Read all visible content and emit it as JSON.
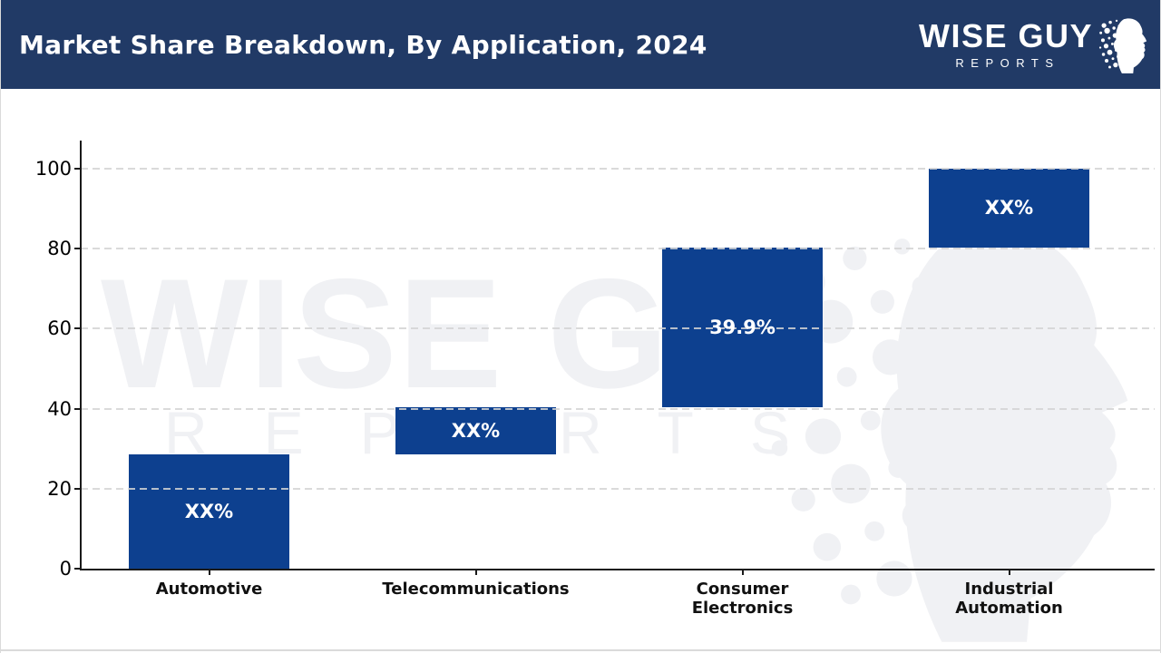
{
  "header": {
    "title": "Market Share Breakdown, By Application, 2024",
    "logo": {
      "line1": "WISE GUY",
      "line2": "REPORTS"
    },
    "bg_color": "#213A66"
  },
  "watermark": {
    "line1": "WISE GU",
    "line2": "REPORTS"
  },
  "chart_data": {
    "type": "bar",
    "subtype": "waterfall",
    "title": "Market Share Breakdown, By Application, 2024",
    "xlabel": "",
    "ylabel": "",
    "categories": [
      "Automotive",
      "Telecommunications",
      "Consumer Electronics",
      "Industrial Automation"
    ],
    "segments": [
      {
        "label": "Automotive",
        "label_lines": [
          "Automotive"
        ],
        "start": 0,
        "end": 28.5,
        "value": 28.5,
        "value_label": "XX%"
      },
      {
        "label": "Telecommunications",
        "label_lines": [
          "Telecommunications"
        ],
        "start": 28.5,
        "end": 40.4,
        "value": 11.9,
        "value_label": "XX%"
      },
      {
        "label": "Consumer Electronics",
        "label_lines": [
          "Consumer",
          "Electronics"
        ],
        "start": 40.4,
        "end": 80.3,
        "value": 39.9,
        "value_label": "39.9%"
      },
      {
        "label": "Industrial Automation",
        "label_lines": [
          "Industrial",
          "Automation"
        ],
        "start": 80.3,
        "end": 100,
        "value": 19.7,
        "value_label": "XX%"
      }
    ],
    "y_ticks": [
      0,
      20,
      40,
      60,
      80,
      100
    ],
    "ylim": [
      0,
      107
    ],
    "bar_color": "#0D408F",
    "grid": "horizontal dashed",
    "legend": "none"
  }
}
